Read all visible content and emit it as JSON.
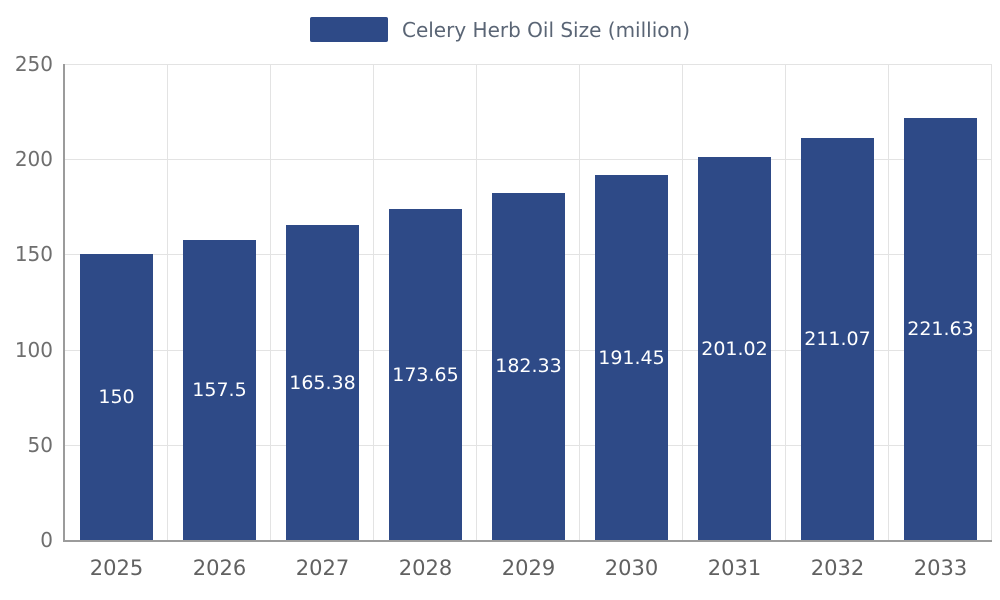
{
  "legend": {
    "label": "Celery Herb Oil Size (million)"
  },
  "chart_data": {
    "type": "bar",
    "title": "Celery Herb Oil Size (million)",
    "categories": [
      "2025",
      "2026",
      "2027",
      "2028",
      "2029",
      "2030",
      "2031",
      "2032",
      "2033"
    ],
    "values": [
      150,
      157.5,
      165.38,
      173.65,
      182.33,
      191.45,
      201.02,
      211.07,
      221.63
    ],
    "xlabel": "",
    "ylabel": "",
    "ylim": [
      0,
      250
    ],
    "yticks": [
      0,
      50,
      100,
      150,
      200,
      250
    ],
    "grid": true,
    "legend_position": "top",
    "bar_color": "#2e4a87",
    "value_label_color": "#ffffff"
  },
  "colors": {
    "axis_line": "#9b9b9b",
    "gridline": "#e3e3e3",
    "y_tick_text": "#6e6e6e",
    "x_tick_text": "#616161",
    "legend_text": "#5a6575",
    "background": "#ffffff"
  }
}
